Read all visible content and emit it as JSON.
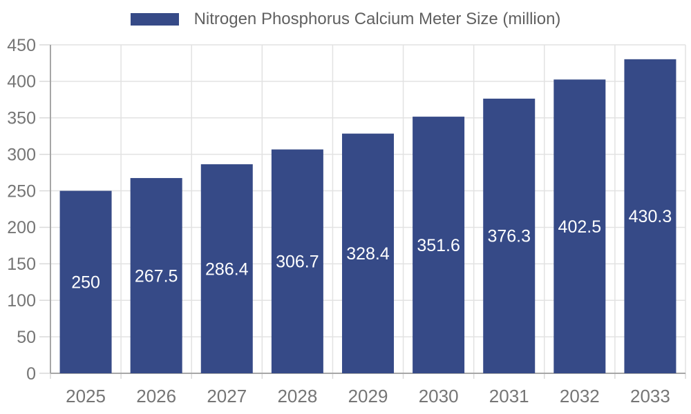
{
  "legend": {
    "label": "Nitrogen Phosphorus Calcium Meter Size (million)"
  },
  "colors": {
    "bar": "#364a87",
    "axis_line": "#a6a6a6",
    "grid_line": "#e2e2e2",
    "tick_mark": "#d9d9d9",
    "tick_label": "#757575",
    "value_label": "#ffffff",
    "legend_text": "#606060",
    "background": "#ffffff"
  },
  "chart_data": {
    "type": "bar",
    "title": "Nitrogen Phosphorus Calcium Meter Size (million)",
    "categories": [
      "2025",
      "2026",
      "2027",
      "2028",
      "2029",
      "2030",
      "2031",
      "2032",
      "2033"
    ],
    "values": [
      250,
      267.5,
      286.4,
      306.7,
      328.4,
      351.6,
      376.3,
      402.5,
      430.3
    ],
    "xlabel": "",
    "ylabel": "",
    "ylim": [
      0,
      450
    ],
    "ytick_step": 50,
    "grid": true,
    "legend_position": "top",
    "value_label_position": "inside-center"
  }
}
